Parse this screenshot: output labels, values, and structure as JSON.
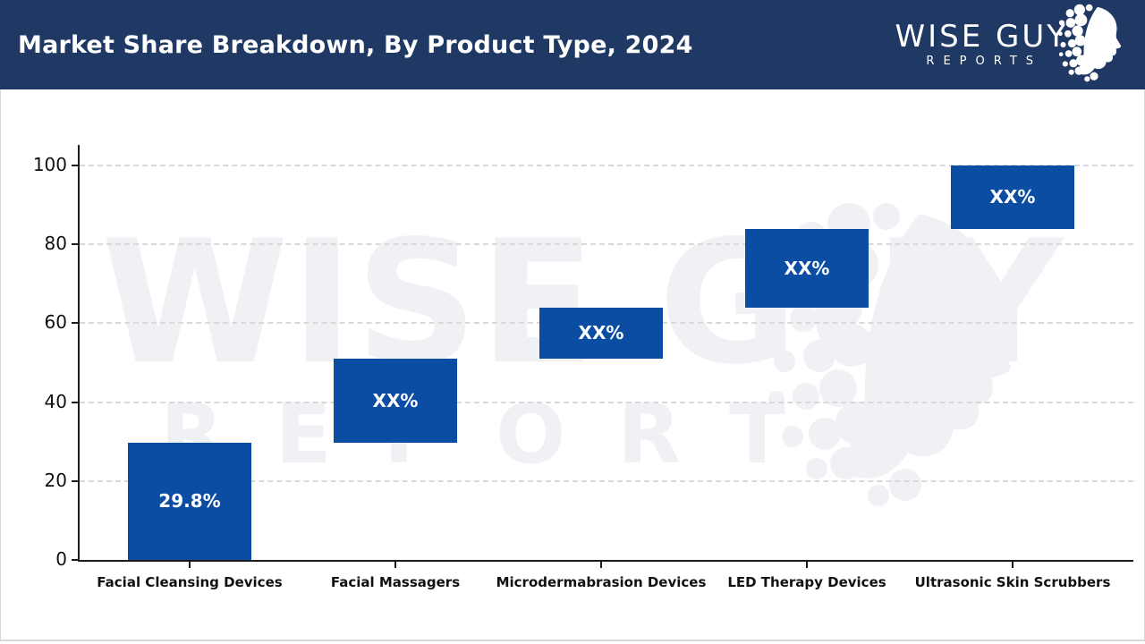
{
  "header": {
    "title": "Market Share Breakdown, By Product Type, 2024",
    "logo": {
      "line1": "WISE GUY",
      "line2": "REPORTS"
    }
  },
  "watermark": {
    "line1": "WISE GUY",
    "line2": "REPORTS"
  },
  "chart_data": {
    "type": "bar",
    "subtype": "waterfall-stacked-percentage",
    "title": "Market Share Breakdown, By Product Type, 2024",
    "categories": [
      "Facial Cleansing Devices",
      "Facial Massagers",
      "Microdermabrasion Devices",
      "LED Therapy Devices",
      "Ultrasonic Skin Scrubbers"
    ],
    "segments": [
      {
        "category": "Facial Cleansing Devices",
        "start": 0,
        "end": 29.8,
        "label": "29.8%"
      },
      {
        "category": "Facial Massagers",
        "start": 29.8,
        "end": 51,
        "label": "XX%"
      },
      {
        "category": "Microdermabrasion Devices",
        "start": 51,
        "end": 64,
        "label": "XX%"
      },
      {
        "category": "LED Therapy Devices",
        "start": 64,
        "end": 84,
        "label": "XX%"
      },
      {
        "category": "Ultrasonic Skin Scrubbers",
        "start": 84,
        "end": 100,
        "label": "XX%"
      }
    ],
    "y_ticks": [
      0,
      20,
      40,
      60,
      80,
      100
    ],
    "ylim": [
      0,
      105
    ],
    "xlabel": "",
    "ylabel": "",
    "grid": "horizontal-dashed",
    "legend": "none",
    "bar_color": "#0B4DA2"
  },
  "colors": {
    "header_bg": "#1F3864",
    "bar": "#0B4DA2",
    "grid": "#D9D9D9",
    "axis": "#1A1A1A",
    "watermark": "#F0F1F4",
    "border": "#D9D9D9",
    "title_text": "#FFFFFF",
    "bar_label_text": "#FFFFFF"
  }
}
